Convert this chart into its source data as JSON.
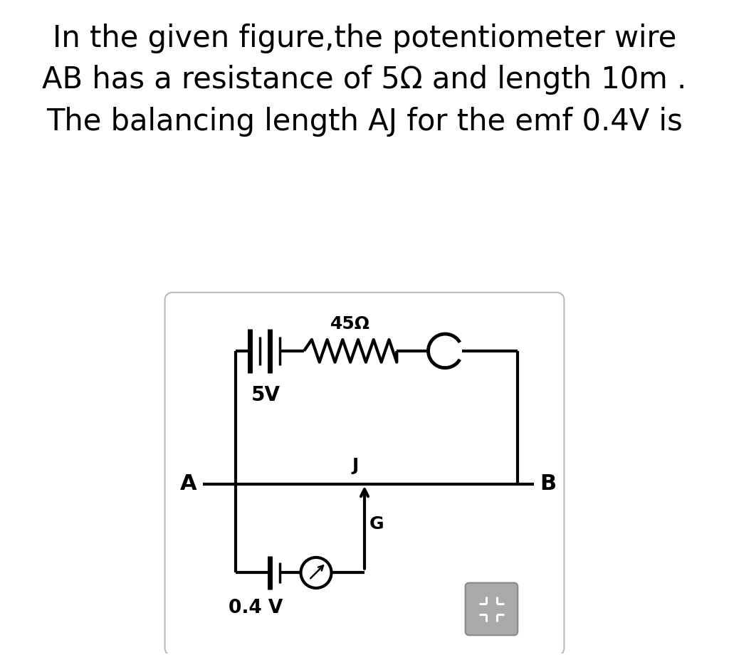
{
  "title_text": "In the given figure,the potentiometer wire\nAB has a resistance of 5Ω and length 10m .\nThe balancing length AJ for the emf 0.4V is",
  "title_fontsize": 30,
  "title_color": "#000000",
  "bg_color": "#ffffff",
  "outer_bg": "#c8c8c8",
  "label_5V": "5V",
  "label_45ohm": "45Ω",
  "label_A": "A",
  "label_B": "B",
  "label_J": "J",
  "label_G": "G",
  "label_04V": "0.4 V",
  "line_color": "#000000",
  "line_width": 3.0,
  "battery_long_lw": 5.0,
  "battery_short_lw": 2.5
}
